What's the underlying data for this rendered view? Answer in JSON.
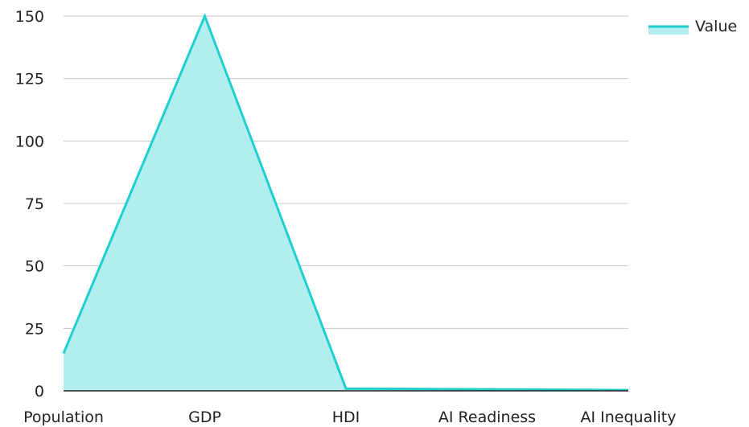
{
  "chart_data": {
    "type": "area",
    "categories": [
      "Population",
      "GDP",
      "HDI",
      "AI Readiness",
      "AI Inequality"
    ],
    "series": [
      {
        "name": "Value",
        "values": [
          15,
          150,
          0.9,
          0.6,
          0.3
        ]
      }
    ],
    "title": "",
    "xlabel": "",
    "ylabel": "",
    "ylim": [
      0,
      150
    ],
    "yticks": [
      0,
      25,
      50,
      75,
      100,
      125,
      150
    ],
    "grid": true,
    "legend": "top-right",
    "colors": {
      "line": "#1fcfcf",
      "fill": "#b3eeee",
      "grid": "#c8c8c8",
      "axis": "#222222"
    }
  }
}
